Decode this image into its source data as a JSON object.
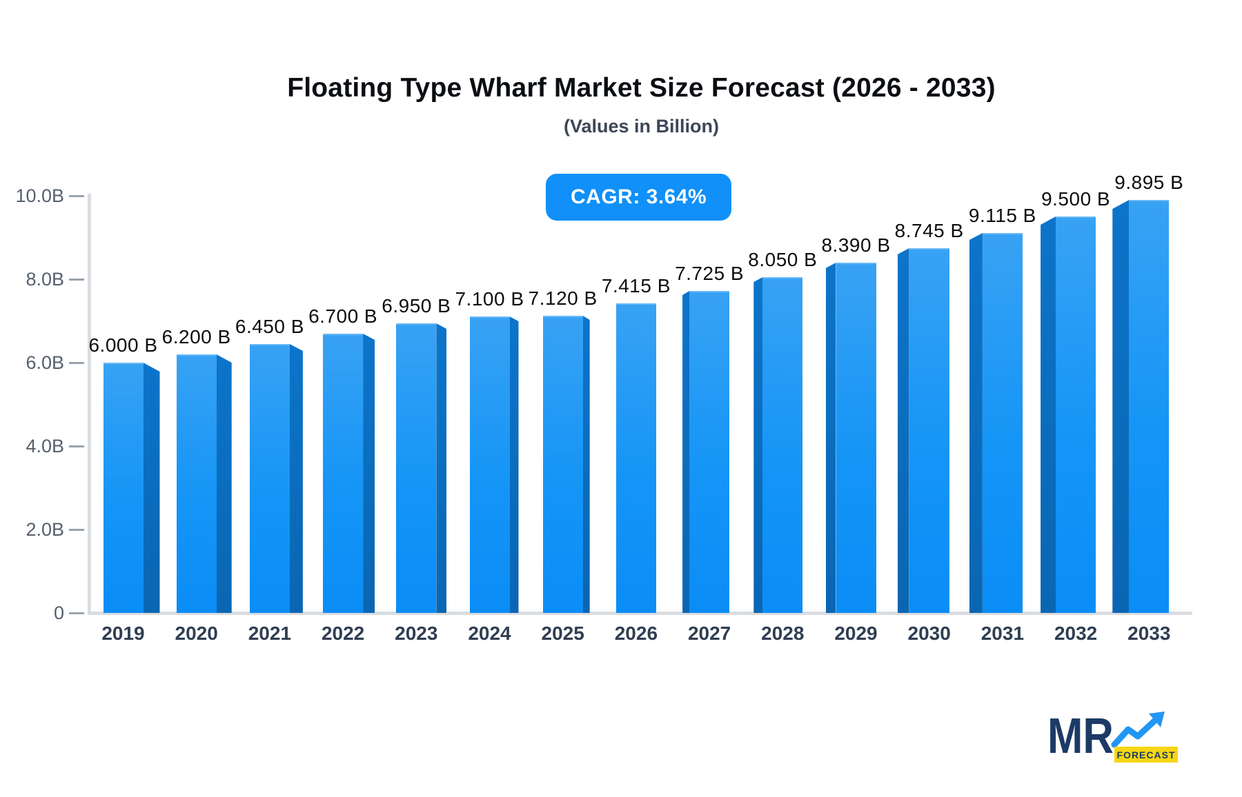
{
  "title": "Floating Type Wharf Market Size Forecast (2026 - 2033)",
  "subtitle": "(Values in Billion)",
  "cagr_badge": "CAGR: 3.64%",
  "logo": {
    "mr": "MR",
    "forecast": "FORECAST"
  },
  "colors": {
    "badge_blue": "#1090f8",
    "bar_face_top": "#38a2f4",
    "bar_face_bottom": "#0a8df6",
    "bar_side": "#0b6dbe",
    "axis_gray": "#d9dce1",
    "logo_navy": "#1c3a66",
    "logo_yellow": "#f7d613",
    "logo_arrow_blue": "#2196f3"
  },
  "chart_data": {
    "type": "bar",
    "title": "Floating Type Wharf Market Size Forecast (2026 - 2033)",
    "subtitle": "(Values in Billion)",
    "cagr": "3.64%",
    "categories": [
      "2019",
      "2020",
      "2021",
      "2022",
      "2023",
      "2024",
      "2025",
      "2026",
      "2027",
      "2028",
      "2029",
      "2030",
      "2031",
      "2032",
      "2033"
    ],
    "values": [
      6.0,
      6.2,
      6.45,
      6.7,
      6.95,
      7.1,
      7.12,
      7.415,
      7.725,
      8.05,
      8.39,
      8.745,
      9.115,
      9.5,
      9.895
    ],
    "value_labels": [
      "6.000 B",
      "6.200 B",
      "6.450 B",
      "6.700 B",
      "6.950 B",
      "7.100 B",
      "7.120 B",
      "7.415 B",
      "7.725 B",
      "8.050 B",
      "8.390 B",
      "8.745 B",
      "9.115 B",
      "9.500 B",
      "9.895 B"
    ],
    "y_tick_labels": [
      "10.0B",
      "8.0B",
      "6.0B",
      "4.0B",
      "2.0B",
      "0"
    ],
    "y_tick_values": [
      10,
      8,
      6,
      4,
      2,
      0
    ],
    "ylim": [
      0,
      10
    ],
    "grid": false,
    "legend": false,
    "unit": "Billion"
  }
}
